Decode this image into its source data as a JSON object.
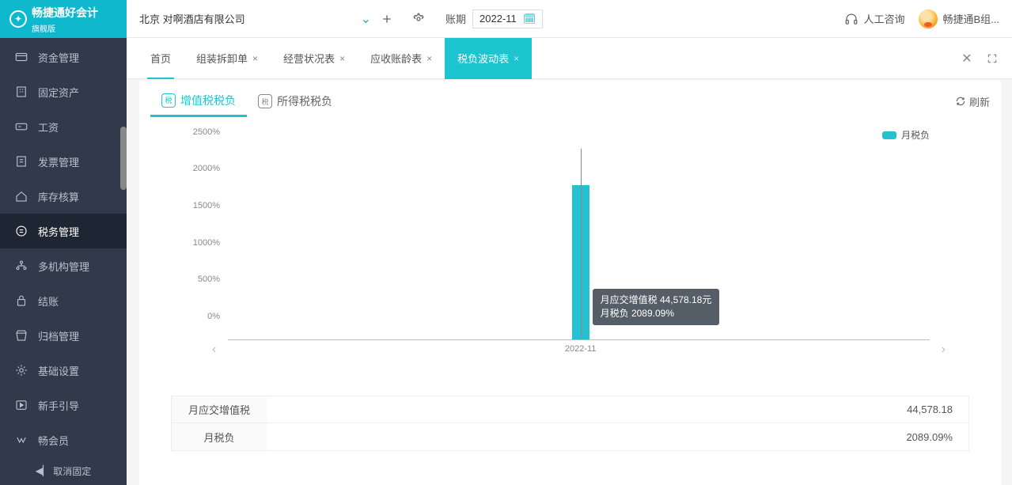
{
  "logo": {
    "text": "畅捷通好会计",
    "sub": "旗舰版"
  },
  "sidebar": {
    "items": [
      {
        "label": "资金管理"
      },
      {
        "label": "固定资产"
      },
      {
        "label": "工资"
      },
      {
        "label": "发票管理"
      },
      {
        "label": "库存核算"
      },
      {
        "label": "税务管理"
      },
      {
        "label": "多机构管理"
      },
      {
        "label": "结账"
      },
      {
        "label": "归档管理"
      },
      {
        "label": "基础设置"
      },
      {
        "label": "新手引导"
      },
      {
        "label": "畅会员"
      }
    ],
    "collapse": "取消固定"
  },
  "topbar": {
    "company": "北京 对啊酒店有限公司",
    "period_label": "账期",
    "period_value": "2022-11",
    "service": "人工咨询",
    "user": "畅捷通B组..."
  },
  "tabs": [
    {
      "label": "首页",
      "closable": false
    },
    {
      "label": "组装拆卸单",
      "closable": true
    },
    {
      "label": "经营状况表",
      "closable": true
    },
    {
      "label": "应收账龄表",
      "closable": true
    },
    {
      "label": "税负波动表",
      "closable": true,
      "active": true
    }
  ],
  "subtabs": [
    {
      "label": "增值税税负",
      "active": true
    },
    {
      "label": "所得税税负",
      "active": false
    }
  ],
  "refresh_label": "刷新",
  "chart": {
    "type": "bar",
    "legend_label": "月税负",
    "legend_color": "#25c1d1",
    "y_ticks": [
      "0%",
      "500%",
      "1000%",
      "1500%",
      "2000%",
      "2500%"
    ],
    "y_max": 2700,
    "x_label": "2022-11",
    "bar_value": 2089.09,
    "bar_color": "#25c1d1",
    "tooltip": {
      "line1": "月应交增值税 44,578.18元",
      "line2": "月税负 2089.09%"
    },
    "background_color": "#ffffff",
    "axis_color": "#bbbbbb",
    "tick_font_color": "#888888",
    "tick_fontsize": 11
  },
  "table": {
    "rows": [
      {
        "label": "月应交增值税",
        "value": "44,578.18"
      },
      {
        "label": "月税负",
        "value": "2089.09%"
      }
    ]
  }
}
